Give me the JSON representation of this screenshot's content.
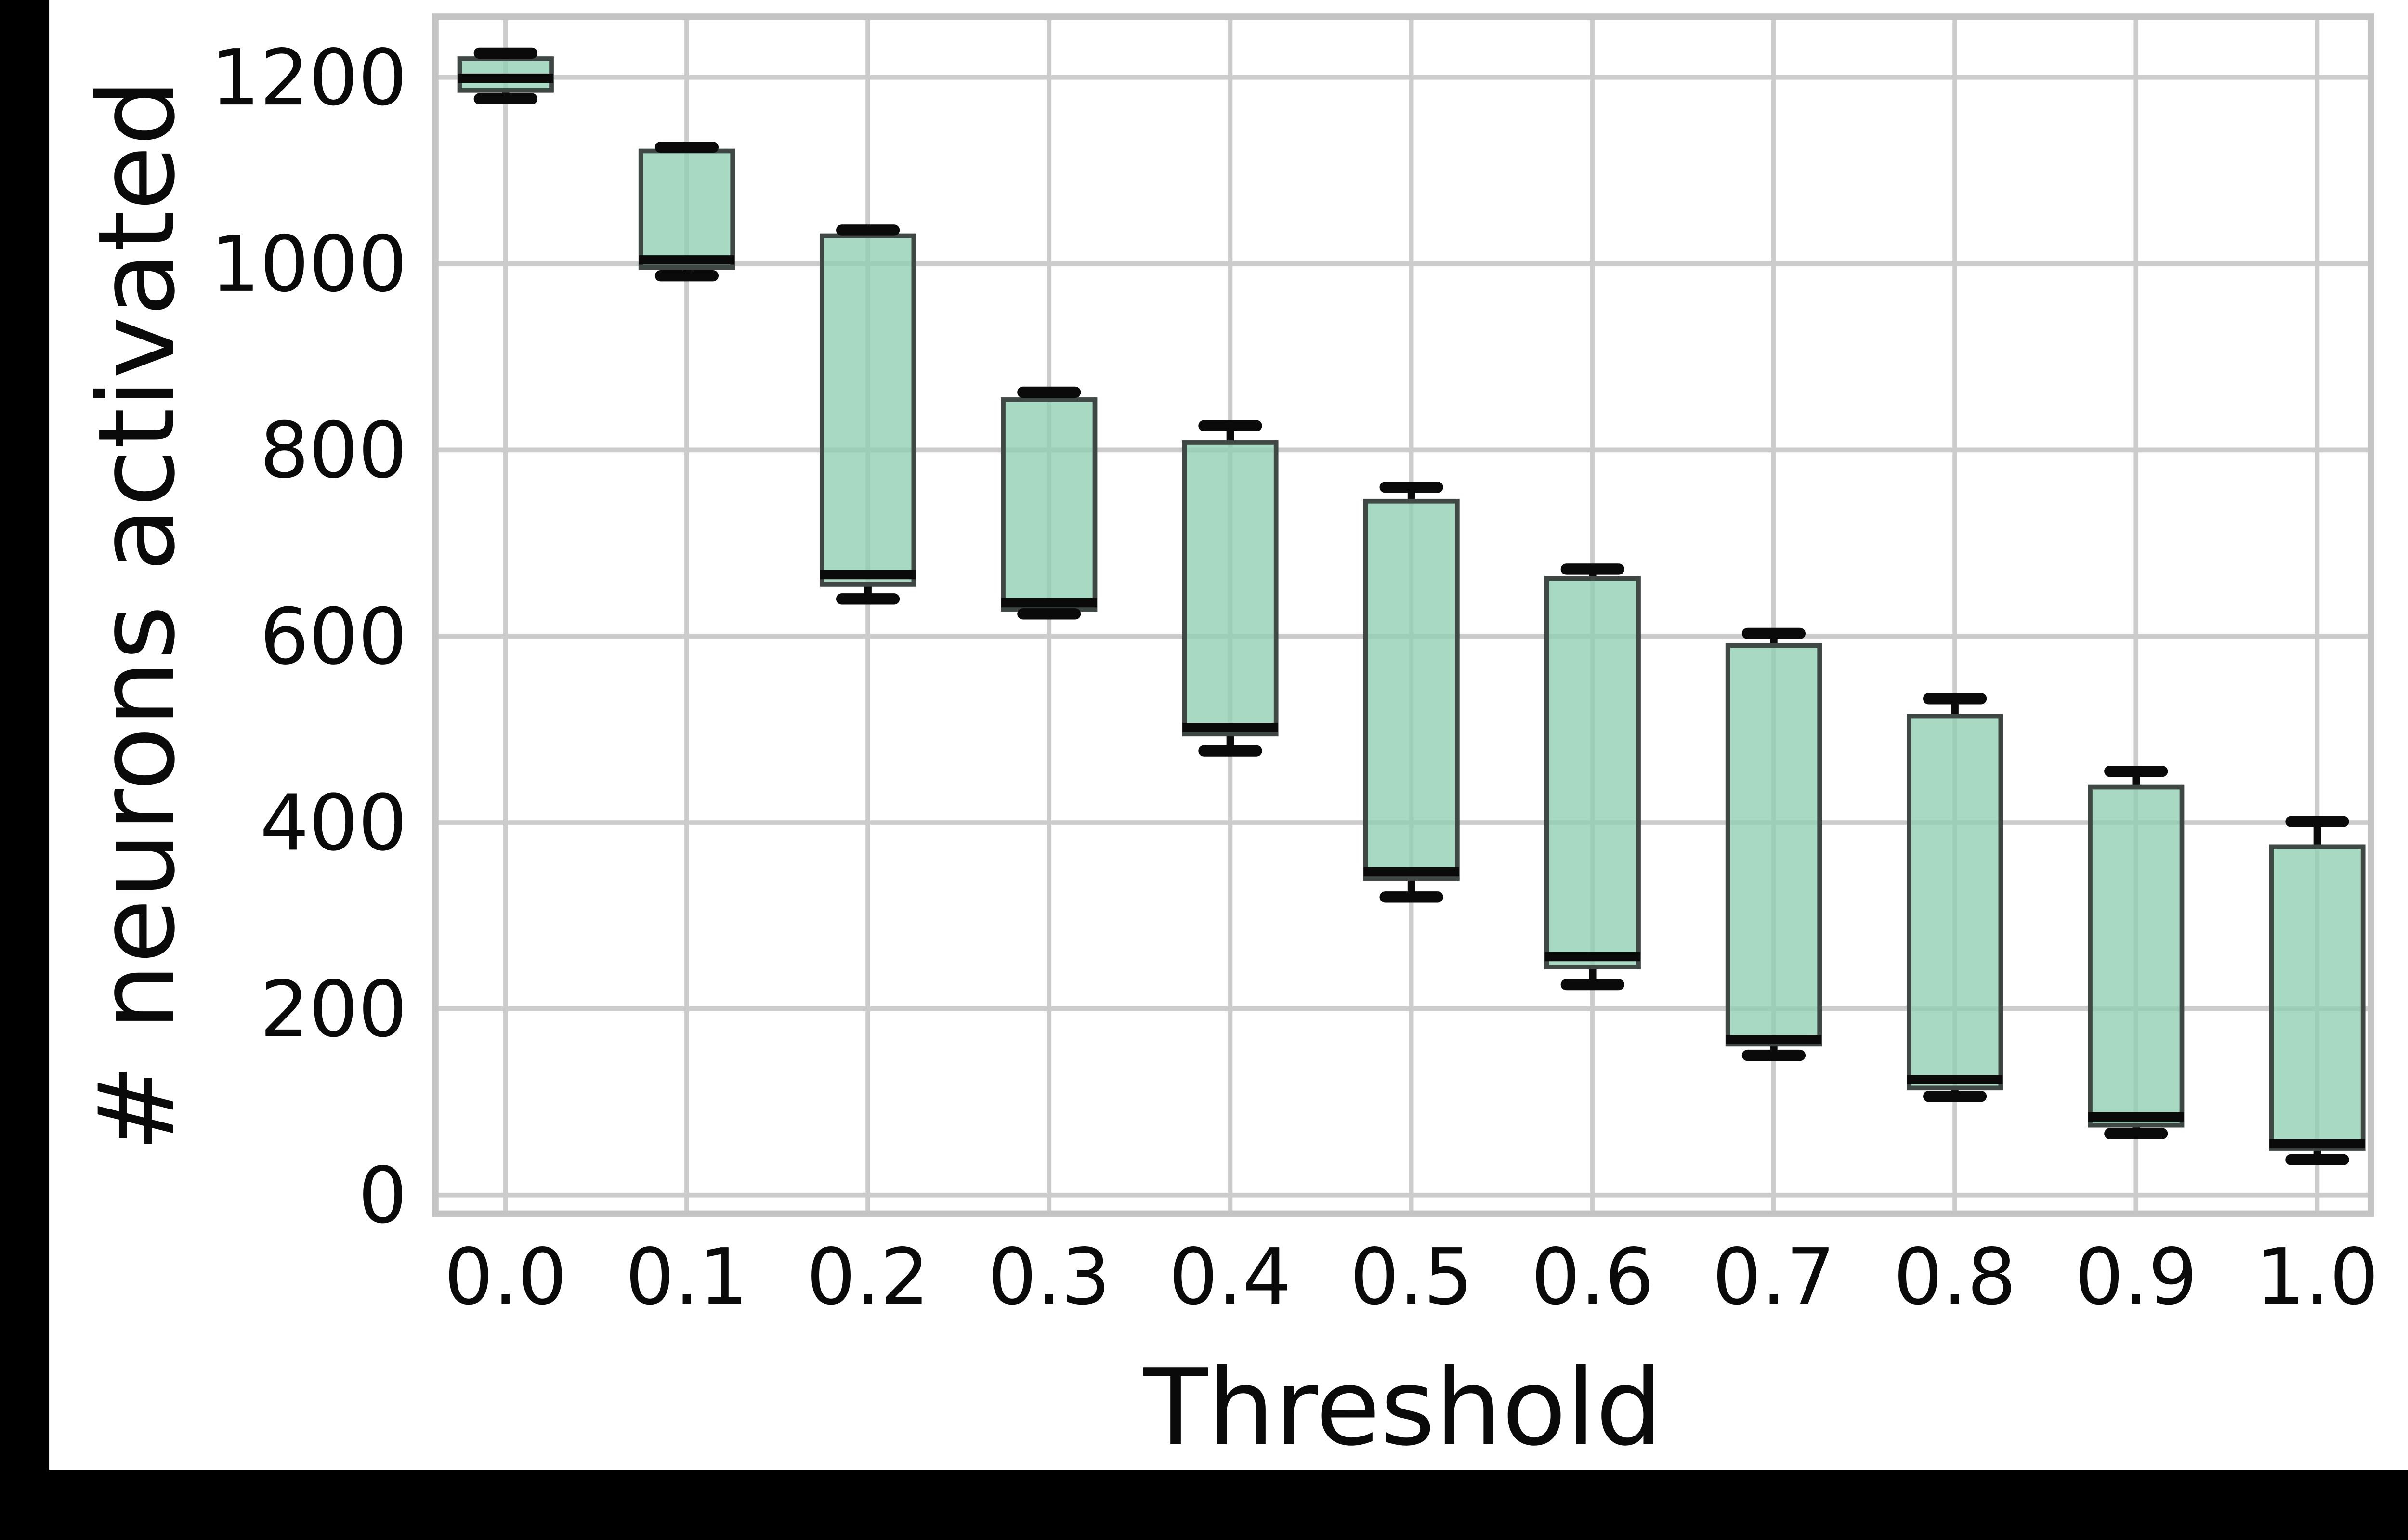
{
  "chart_data": {
    "type": "box",
    "title": "",
    "xlabel": "Threshold",
    "ylabel": "# neurons activated",
    "categories": [
      "0.0",
      "0.1",
      "0.2",
      "0.3",
      "0.4",
      "0.5",
      "0.6",
      "0.7",
      "0.8",
      "0.9",
      "1.0"
    ],
    "ytick_labels": [
      "0",
      "200",
      "400",
      "600",
      "800",
      "1000",
      "1200"
    ],
    "ytick_values": [
      0,
      200,
      400,
      600,
      800,
      1000,
      1200
    ],
    "ylim": [
      -20,
      1265
    ],
    "grid": true,
    "legend": "none",
    "boxes": [
      {
        "category": "0.0",
        "whisker_low": 1177,
        "q1": 1186,
        "median": 1199,
        "q3": 1220,
        "whisker_high": 1226
      },
      {
        "category": "0.1",
        "whisker_low": 987,
        "q1": 996,
        "median": 1004,
        "q3": 1121,
        "whisker_high": 1125
      },
      {
        "category": "0.2",
        "whisker_low": 640,
        "q1": 656,
        "median": 666,
        "q3": 1030,
        "whisker_high": 1036
      },
      {
        "category": "0.3",
        "whisker_low": 624,
        "q1": 629,
        "median": 636,
        "q3": 854,
        "whisker_high": 862
      },
      {
        "category": "0.4",
        "whisker_low": 477,
        "q1": 495,
        "median": 502,
        "q3": 808,
        "whisker_high": 826
      },
      {
        "category": "0.5",
        "whisker_low": 320,
        "q1": 340,
        "median": 347,
        "q3": 745,
        "whisker_high": 760
      },
      {
        "category": "0.6",
        "whisker_low": 226,
        "q1": 245,
        "median": 256,
        "q3": 662,
        "whisker_high": 672
      },
      {
        "category": "0.7",
        "whisker_low": 150,
        "q1": 162,
        "median": 167,
        "q3": 590,
        "whisker_high": 603
      },
      {
        "category": "0.8",
        "whisker_low": 106,
        "q1": 115,
        "median": 124,
        "q3": 514,
        "whisker_high": 533
      },
      {
        "category": "0.9",
        "whisker_low": 66,
        "q1": 75,
        "median": 84,
        "q3": 438,
        "whisker_high": 455
      },
      {
        "category": "1.0",
        "whisker_low": 38,
        "q1": 50,
        "median": 55,
        "q3": 374,
        "whisker_high": 401
      }
    ],
    "colors": {
      "page_background": "#000000",
      "plot_background": "#ffffff",
      "box_fill": "#8fd0b2",
      "box_edge": "#3f4845",
      "median": "#0a0a0a",
      "whisker": "#0a0a0a",
      "gridline": "#cccccc",
      "frame": "#c4c4c4",
      "text": "#0a0a0a"
    }
  }
}
